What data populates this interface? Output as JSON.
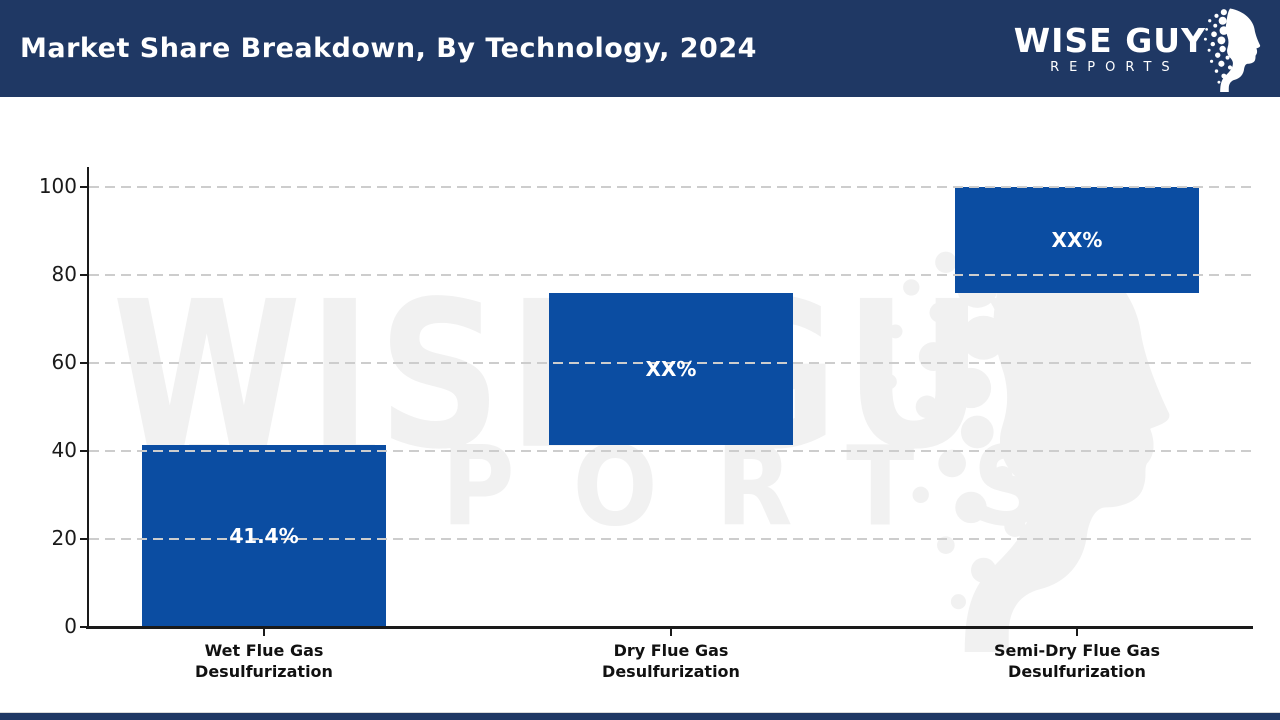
{
  "header": {
    "title": "Market Share Breakdown, By Technology, 2024",
    "logo": {
      "line1": "WISE GUY",
      "line2": "REPORTS"
    }
  },
  "watermark": {
    "line1": "WISE GUY",
    "line2": "REPORTS"
  },
  "colors": {
    "header_navy": "#1f3864",
    "bar_blue": "#0b4da2",
    "gridline_gray": "#cdcdcd",
    "axis_dark": "#1a1a1a",
    "watermark_gray": "#f1f1f1"
  },
  "chart_data": {
    "type": "bar",
    "subtype": "waterfall-floating-segments",
    "title": "Market Share Breakdown, By Technology, 2024",
    "categories": [
      "Wet Flue Gas Desulfurization",
      "Dry Flue Gas Desulfurization",
      "Semi-Dry Flue Gas Desulfurization"
    ],
    "category_lines": [
      [
        "Wet Flue Gas",
        "Desulfurization"
      ],
      [
        "Dry Flue Gas",
        "Desulfurization"
      ],
      [
        "Semi-Dry Flue Gas",
        "Desulfurization"
      ]
    ],
    "segments": [
      {
        "category": "Wet Flue Gas Desulfurization",
        "start": 0,
        "end": 41.4,
        "label": "41.4%"
      },
      {
        "category": "Dry Flue Gas Desulfurization",
        "start": 41.4,
        "end": 75.9,
        "label": "XX%"
      },
      {
        "category": "Semi-Dry Flue Gas Desulfurization",
        "start": 75.9,
        "end": 100,
        "label": "XX%"
      }
    ],
    "xlabel": "",
    "ylabel": "",
    "ylim": [
      0,
      105
    ],
    "yticks": [
      0,
      20,
      40,
      60,
      80,
      100
    ],
    "grid": "horizontal-dashed-over-bars",
    "legend": "none",
    "bar_color": "#0b4da2",
    "value_label_color": "#ffffff"
  }
}
